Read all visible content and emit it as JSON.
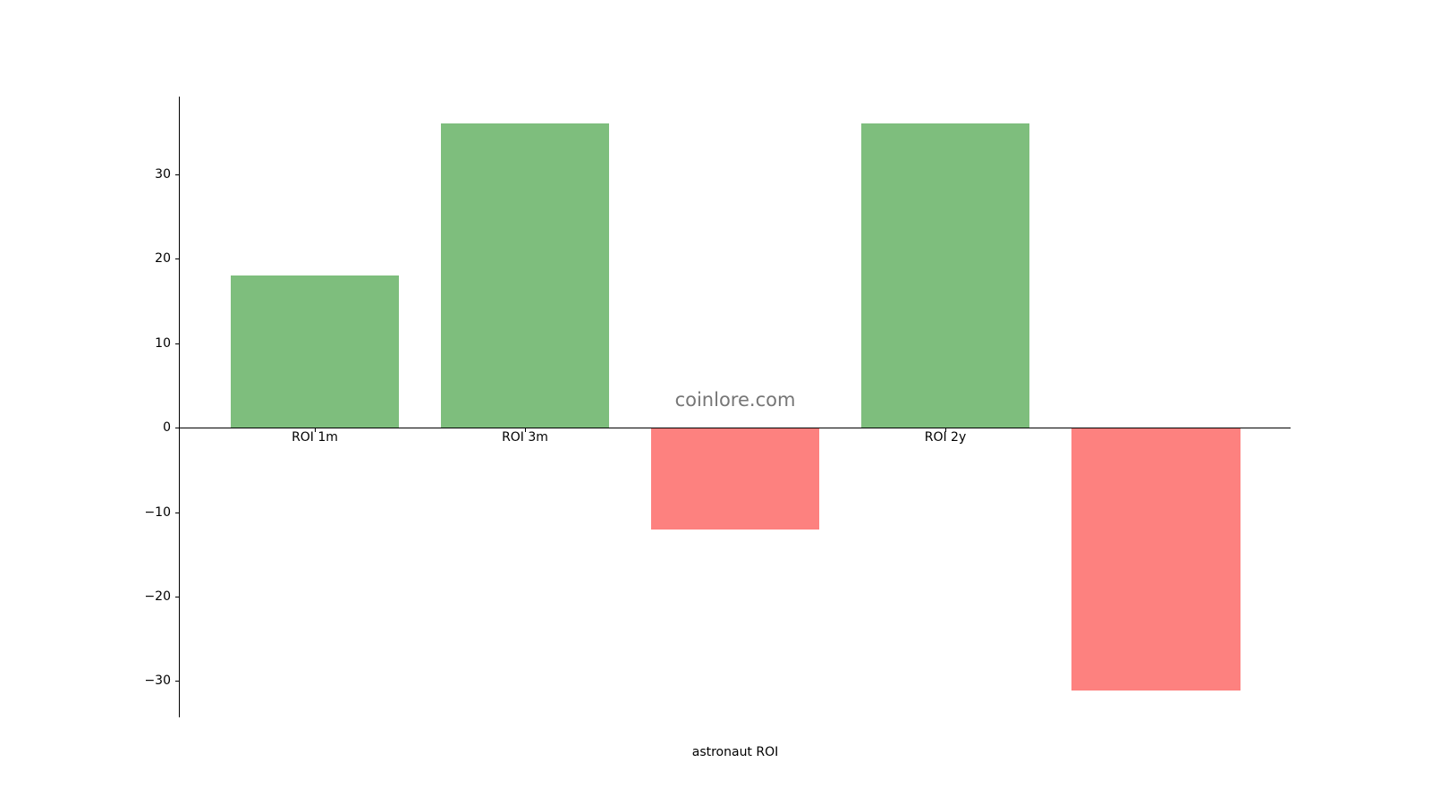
{
  "page": {
    "background": "#ffffff"
  },
  "chart_data": {
    "type": "bar",
    "title": "",
    "xlabel": "astronaut ROI",
    "ylabel": "",
    "watermark": "coinlore.com",
    "categories": [
      "ROI 1m",
      "ROI 3m",
      "",
      "ROI 2y",
      ""
    ],
    "values": [
      18,
      36,
      -12,
      36,
      -31
    ],
    "bar_colors": [
      "#7ebe7d",
      "#7ebe7d",
      "#fd817f",
      "#7ebe7d",
      "#fd817f"
    ],
    "yticks": [
      {
        "value": 30,
        "label": "30"
      },
      {
        "value": 20,
        "label": "20"
      },
      {
        "value": 10,
        "label": "10"
      },
      {
        "value": 0,
        "label": "0"
      },
      {
        "value": -10,
        "label": "−10"
      },
      {
        "value": -20,
        "label": "−20"
      },
      {
        "value": -30,
        "label": "−30"
      }
    ],
    "ylim": [
      -34.3,
      39.2
    ],
    "xlim": [
      -0.64,
      4.64
    ],
    "bar_width": 0.8,
    "grid": false,
    "legend": null
  },
  "colors": {
    "positive_bar": "#7ebe7d",
    "negative_bar": "#fd817f",
    "axis": "#000000",
    "tick_label": "#000000",
    "watermark": "#767676",
    "background": "#ffffff"
  }
}
